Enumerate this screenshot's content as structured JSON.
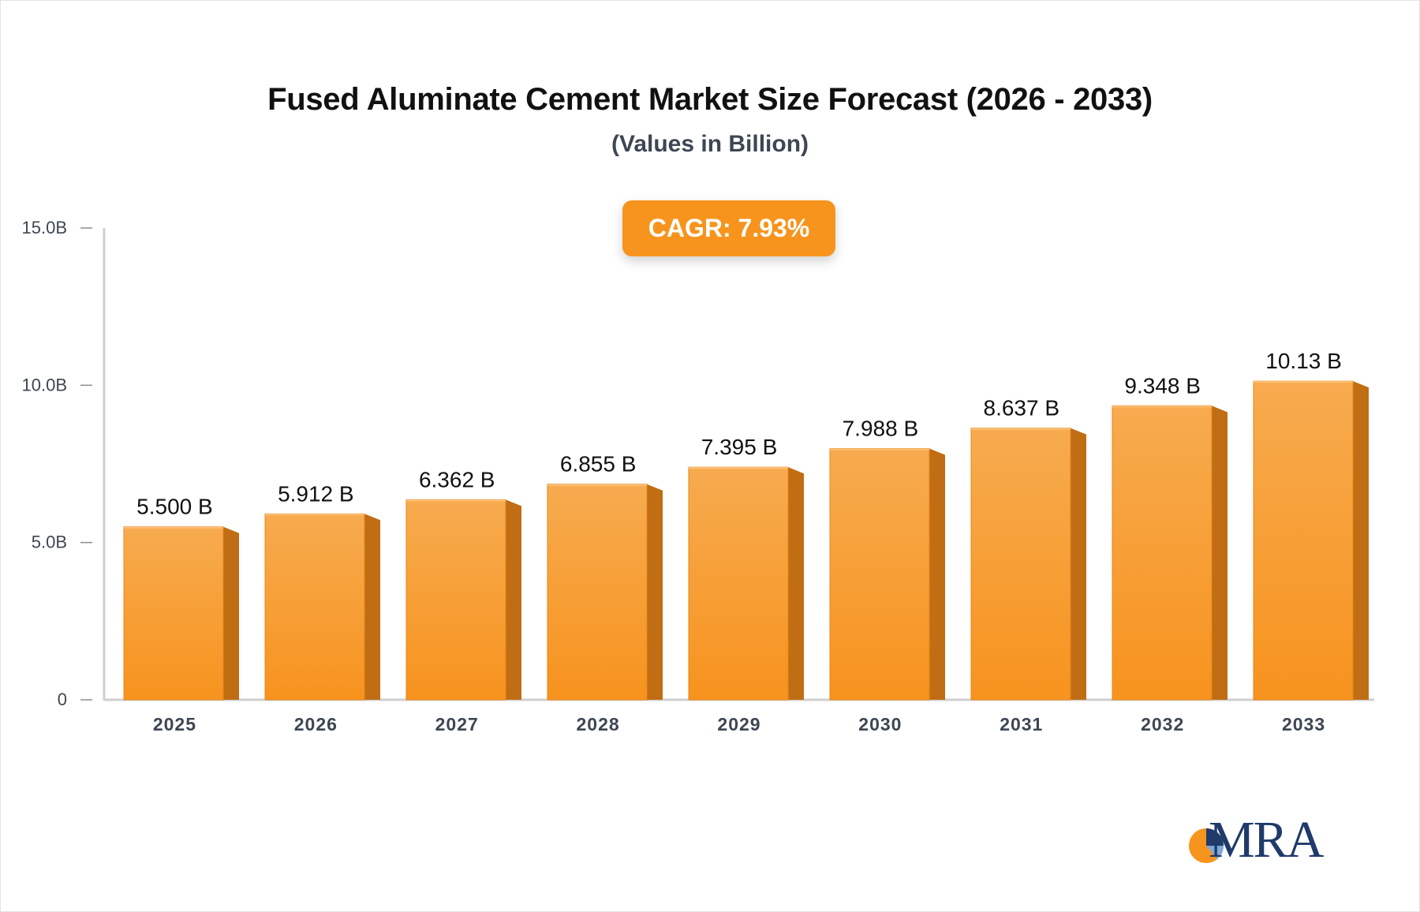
{
  "chart_data": {
    "type": "bar",
    "title": "Fused Aluminate Cement Market Size Forecast (2026 - 2033)",
    "subtitle": "(Values in Billion)",
    "badge": "CAGR: 7.93%",
    "categories": [
      "2025",
      "2026",
      "2027",
      "2028",
      "2029",
      "2030",
      "2031",
      "2032",
      "2033"
    ],
    "values": [
      5.5,
      5.912,
      6.362,
      6.855,
      7.395,
      7.988,
      8.637,
      9.348,
      10.13
    ],
    "value_labels": [
      "5.500 B",
      "5.912 B",
      "6.362 B",
      "6.855 B",
      "7.395 B",
      "7.988 B",
      "8.637 B",
      "9.348 B",
      "10.13 B"
    ],
    "yticks": [
      {
        "value": 0,
        "label": "0"
      },
      {
        "value": 5,
        "label": "5.0B"
      },
      {
        "value": 10,
        "label": "10.0B"
      },
      {
        "value": 15,
        "label": "15.0B"
      }
    ],
    "ylim": [
      0,
      15
    ],
    "grid": false,
    "colors": {
      "bar_top": "#f7ab4f",
      "bar_bottom": "#f7931e",
      "bar_side": "#c06d13",
      "axis": "#cfcfcf",
      "tick_text": "#3d4653",
      "label_text": "#111111"
    }
  },
  "logo": {
    "text": "MRA"
  }
}
